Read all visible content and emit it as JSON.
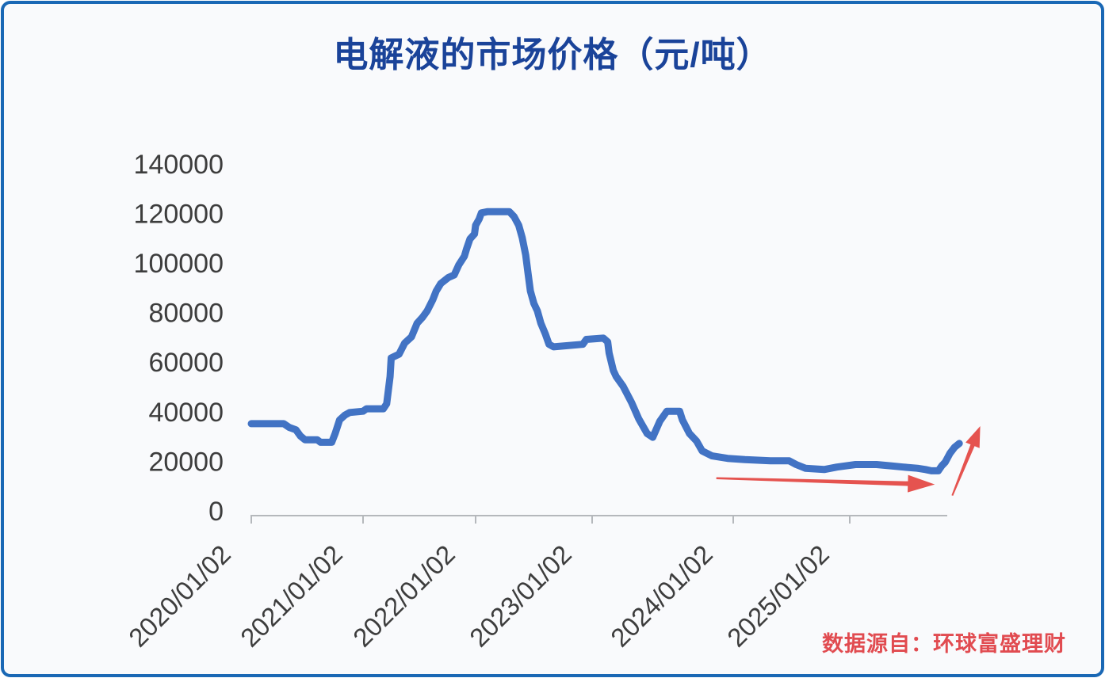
{
  "colors": {
    "title": "#1a4399",
    "line": "#4273c4",
    "arrow": "#e2403c",
    "source_text": "#e14b50",
    "border": "#1a68b5",
    "axis": "#b5b8bc",
    "tick_label": "#3d3d3d"
  },
  "chart_data": {
    "type": "line",
    "title": "电解液的市场价格（元/吨）",
    "source": "数据源自：环球富盛理财",
    "xlabel": "",
    "ylabel": "",
    "ylim": [
      0,
      140000
    ],
    "grid": false,
    "legend_position": "none",
    "y_ticks": [
      0,
      20000,
      40000,
      60000,
      80000,
      100000,
      120000,
      140000
    ],
    "x_ticks": [
      {
        "year": 2020,
        "label": "2020/01/02"
      },
      {
        "year": 2021,
        "label": "2021/01/02"
      },
      {
        "year": 2022,
        "label": "2022/01/02"
      },
      {
        "year": 2023,
        "label": "2023/01/02"
      },
      {
        "year": 2024,
        "label": "2024/01/02"
      },
      {
        "year": 2025,
        "label": "2025/01/02"
      }
    ],
    "series": [
      {
        "name": "电解液市场价格",
        "color": "#4273c4",
        "points": [
          [
            2020.0,
            35500
          ],
          [
            2020.29,
            35500
          ],
          [
            2020.34,
            34000
          ],
          [
            2020.4,
            33000
          ],
          [
            2020.44,
            30500
          ],
          [
            2020.48,
            29000
          ],
          [
            2020.59,
            29000
          ],
          [
            2020.62,
            28000
          ],
          [
            2020.72,
            28000
          ],
          [
            2020.75,
            31500
          ],
          [
            2020.79,
            37000
          ],
          [
            2020.84,
            39000
          ],
          [
            2020.88,
            40000
          ],
          [
            2021.0,
            40500
          ],
          [
            2021.03,
            41500
          ],
          [
            2021.18,
            41500
          ],
          [
            2021.21,
            43500
          ],
          [
            2021.24,
            54500
          ],
          [
            2021.25,
            62000
          ],
          [
            2021.32,
            63500
          ],
          [
            2021.37,
            68000
          ],
          [
            2021.43,
            70500
          ],
          [
            2021.48,
            76000
          ],
          [
            2021.53,
            78500
          ],
          [
            2021.57,
            81000
          ],
          [
            2021.62,
            85500
          ],
          [
            2021.65,
            89000
          ],
          [
            2021.69,
            92000
          ],
          [
            2021.76,
            94500
          ],
          [
            2021.81,
            95500
          ],
          [
            2021.85,
            99500
          ],
          [
            2021.9,
            103000
          ],
          [
            2021.92,
            106000
          ],
          [
            2021.95,
            110000
          ],
          [
            2021.99,
            112000
          ],
          [
            2022.0,
            115500
          ],
          [
            2022.03,
            118000
          ],
          [
            2022.05,
            120500
          ],
          [
            2022.1,
            121000
          ],
          [
            2022.29,
            121000
          ],
          [
            2022.33,
            119000
          ],
          [
            2022.37,
            115500
          ],
          [
            2022.4,
            110500
          ],
          [
            2022.43,
            103500
          ],
          [
            2022.45,
            96000
          ],
          [
            2022.47,
            89000
          ],
          [
            2022.5,
            84000
          ],
          [
            2022.53,
            81000
          ],
          [
            2022.56,
            76000
          ],
          [
            2022.6,
            71500
          ],
          [
            2022.63,
            67500
          ],
          [
            2022.67,
            66500
          ],
          [
            2022.92,
            67500
          ],
          [
            2022.95,
            69500
          ],
          [
            2023.08,
            70000
          ],
          [
            2023.11,
            68500
          ],
          [
            2023.12,
            64000
          ],
          [
            2023.15,
            57000
          ],
          [
            2023.17,
            54500
          ],
          [
            2023.22,
            50500
          ],
          [
            2023.28,
            44000
          ],
          [
            2023.33,
            37500
          ],
          [
            2023.39,
            31500
          ],
          [
            2023.43,
            30000
          ],
          [
            2023.48,
            36500
          ],
          [
            2023.53,
            40500
          ],
          [
            2023.62,
            40500
          ],
          [
            2023.64,
            37000
          ],
          [
            2023.69,
            31500
          ],
          [
            2023.74,
            28500
          ],
          [
            2023.78,
            24500
          ],
          [
            2023.85,
            22500
          ],
          [
            2023.96,
            21500
          ],
          [
            2024.1,
            21000
          ],
          [
            2024.32,
            20500
          ],
          [
            2024.48,
            20500
          ],
          [
            2024.54,
            19000
          ],
          [
            2024.62,
            17500
          ],
          [
            2024.78,
            17000
          ],
          [
            2024.89,
            18000
          ],
          [
            2025.05,
            19000
          ],
          [
            2025.23,
            19000
          ],
          [
            2025.35,
            18500
          ],
          [
            2025.46,
            18000
          ],
          [
            2025.58,
            17500
          ],
          [
            2025.65,
            17000
          ],
          [
            2025.7,
            16500
          ],
          [
            2025.76,
            16500
          ],
          [
            2025.79,
            18500
          ],
          [
            2025.82,
            20000
          ],
          [
            2025.86,
            23500
          ],
          [
            2025.9,
            26000
          ],
          [
            2025.94,
            27500
          ]
        ]
      }
    ],
    "annotations": [
      {
        "id": "long-flat-arrow",
        "type": "arrow",
        "color": "#e2403c",
        "from": {
          "year": 2023.88,
          "value": 13500
        },
        "to": {
          "year": 2025.73,
          "value": 11000
        }
      },
      {
        "id": "surge-up-arrow",
        "type": "arrow",
        "color": "#e2403c",
        "from": {
          "year": 2025.88,
          "value": 6500
        },
        "to": {
          "year": 2026.12,
          "value": 34500
        }
      }
    ]
  }
}
